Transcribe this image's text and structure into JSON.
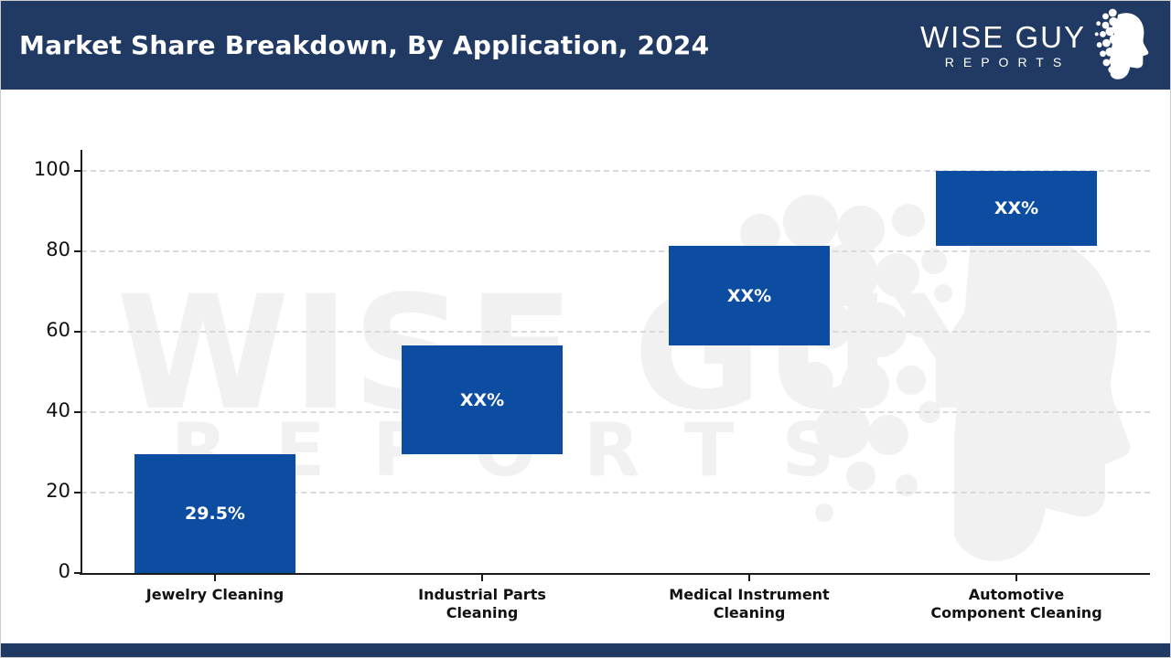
{
  "header": {
    "title": "Market Share Breakdown, By Application, 2024",
    "logo": {
      "wordmark": "WISE GUY",
      "subtitle": "REPORTS"
    },
    "bg_color": "#213a64"
  },
  "watermark": {
    "wordmark": "WISE GUY",
    "subtitle": "REPORTS"
  },
  "chart_data": {
    "type": "bar",
    "subtype": "waterfall",
    "title": "Market Share Breakdown, By Application, 2024",
    "categories": [
      "Jewelry Cleaning",
      "Industrial Parts Cleaning",
      "Medical Instrument Cleaning",
      "Automotive Component Cleaning"
    ],
    "bars": [
      {
        "category_lines": [
          "Jewelry Cleaning"
        ],
        "start": 0,
        "end": 29.5,
        "value_label": "29.5%"
      },
      {
        "category_lines": [
          "Industrial Parts",
          "Cleaning"
        ],
        "start": 29.5,
        "end": 56.6,
        "value_label": "XX%"
      },
      {
        "category_lines": [
          "Medical Instrument",
          "Cleaning"
        ],
        "start": 56.6,
        "end": 81.3,
        "value_label": "XX%"
      },
      {
        "category_lines": [
          "Automotive",
          "Component Cleaning"
        ],
        "start": 81.3,
        "end": 100,
        "value_label": "XX%"
      }
    ],
    "yticks": [
      0,
      20,
      40,
      60,
      80,
      100
    ],
    "ylim": [
      0,
      105
    ],
    "grid": "horizontal-dashed",
    "legend": "none",
    "bar_color": "#0c4da2",
    "bar_label_color": "#ffffff",
    "axis_color": "#1a1a1a",
    "gridline_color": "#d9d9d9"
  }
}
